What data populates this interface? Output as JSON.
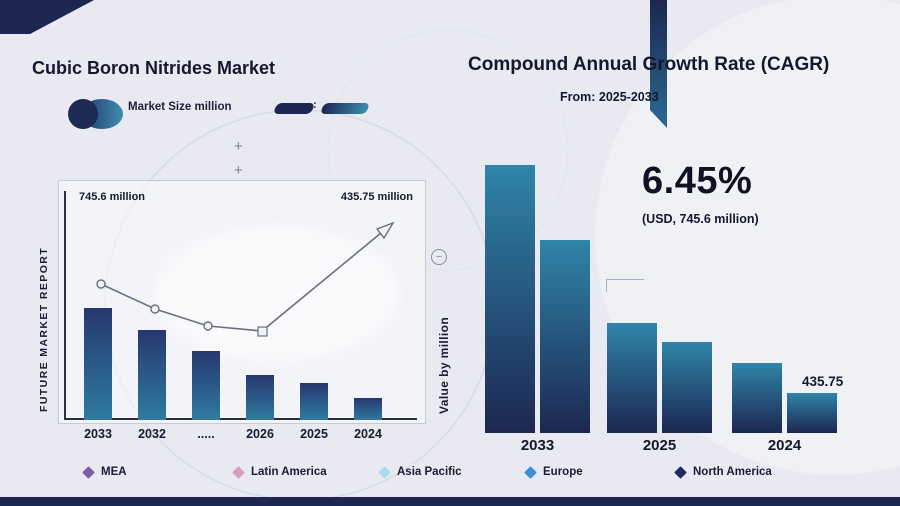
{
  "header": {
    "left_title": "Cubic Boron Nitrides Market",
    "market_size_label": "Market Size million",
    "pill_separator": ":"
  },
  "left_chart": {
    "side_label": "FUTURE MARKET REPORT",
    "annotation_left": "745.6 million",
    "annotation_right": "435.75 million"
  },
  "right_chart": {
    "title": "Compound Annual Growth Rate (CAGR)",
    "subtitle": "From: 2025-2033",
    "cagr_value": "6.45%",
    "cagr_caption": "(USD, 745.6 million)",
    "ylabel": "Value by million",
    "annotation": "435.75"
  },
  "chart_data": [
    {
      "type": "bar",
      "name": "market-size-by-year",
      "title": "Cubic Boron Nitrides Market - Market Size million",
      "categories": [
        "2033",
        "2032",
        ".....",
        "2026",
        "2025",
        "2024"
      ],
      "values_rel": [
        100,
        80,
        62,
        40,
        33,
        20
      ],
      "labeled_values": {
        "2033": "745.6 million",
        "2024": "435.75 million"
      },
      "overlay": "declining trend line with circle markers ending in an upward arrow",
      "note": "y-axis unlabeled; values_rel are pixel-estimated relative bar heights (max=100)"
    },
    {
      "type": "bar",
      "name": "cagr-grouped-bars",
      "title": "Compound Annual Growth Rate (CAGR)",
      "subtitle": "From: 2025-2033",
      "categories": [
        "2033",
        "2025",
        "2024"
      ],
      "series": [
        {
          "name": "bar-1",
          "values_rel": [
            100,
            41,
            26
          ]
        },
        {
          "name": "bar-2",
          "values_rel": [
            72,
            34,
            15
          ]
        }
      ],
      "ylabel": "Value by million",
      "labeled_values": {
        "2024": "435.75"
      },
      "cagr": "6.45%",
      "note": "y-axis unlabeled; values_rel are pixel-estimated relative bar heights (max=100)"
    }
  ],
  "legend": {
    "items": [
      {
        "label": "MEA",
        "color": "#7a5fa8"
      },
      {
        "label": "Latin America",
        "color": "#d79ec2"
      },
      {
        "label": "Asia Pacific",
        "color": "#aadcef"
      },
      {
        "label": "Europe",
        "color": "#3e8ed6"
      },
      {
        "label": "North America",
        "color": "#1f2b5b"
      }
    ]
  },
  "icons": {
    "plus": "+",
    "minus": "−",
    "market_size": "cylinder-icon",
    "trend": "trend-arrow-icon"
  },
  "colors": {
    "background": "#e9eaf1",
    "navy": "#1c2650",
    "teal": "#2e7ba0",
    "bottom_strip": "#1c2650"
  }
}
